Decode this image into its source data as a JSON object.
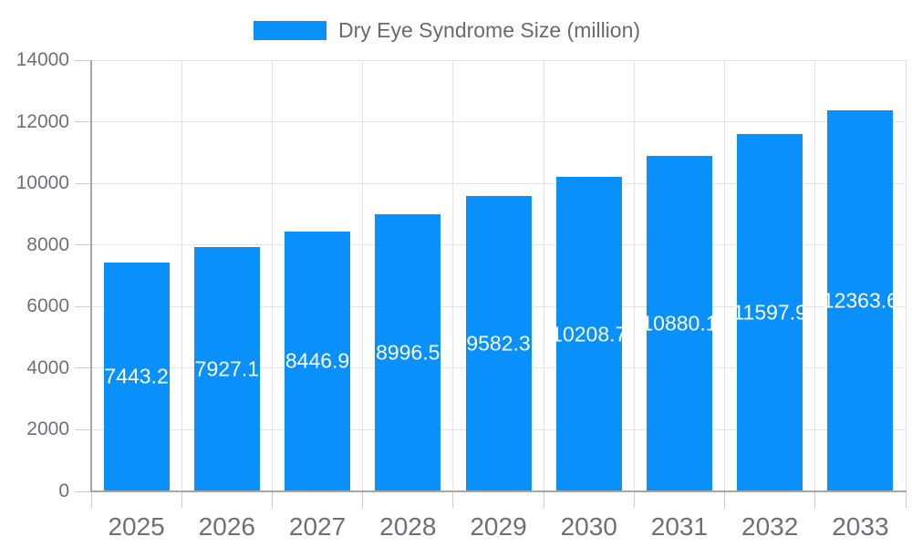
{
  "legend": {
    "label": "Dry Eye Syndrome Size (million)"
  },
  "chart_data": {
    "type": "bar",
    "title": "",
    "legend_entries": [
      "Dry Eye Syndrome Size (million)"
    ],
    "legend_position": "top",
    "categories": [
      "2025",
      "2026",
      "2027",
      "2028",
      "2029",
      "2030",
      "2031",
      "2032",
      "2033"
    ],
    "series": [
      {
        "name": "Dry Eye Syndrome Size (million)",
        "values": [
          7443.2,
          7927.1,
          8446.9,
          8996.5,
          9582.3,
          10208.7,
          10880.1,
          11597.9,
          12363.6
        ]
      }
    ],
    "bar_value_labels": [
      "7443.2",
      "7927.1",
      "8446.9",
      "8996.5",
      "9582.3",
      "10208.7",
      "10880.1",
      "11597.9",
      "12363.6"
    ],
    "xlabel": "",
    "ylabel": "",
    "ylim": [
      0,
      14000
    ],
    "yticks": [
      0,
      2000,
      4000,
      6000,
      8000,
      10000,
      12000,
      14000
    ],
    "grid": {
      "horizontal": true,
      "vertical": true
    }
  },
  "style": {
    "background": "#ffffff",
    "bar_color": "#0990fa",
    "bar_label_color": "#ffffff",
    "grid_color": "#e3e3e3",
    "tick_color": "#cccccc",
    "axis_line_color": "#a6a6a6",
    "axis_text_color": "#6e7079",
    "legend_text_color": "#666b70"
  }
}
